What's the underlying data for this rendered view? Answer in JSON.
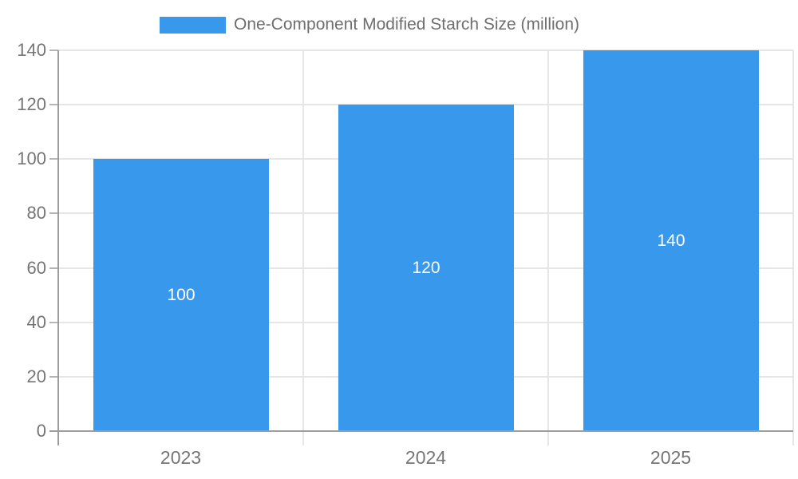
{
  "legend": {
    "label": "One-Component Modified Starch Size (million)",
    "swatch_color": "#3899ec"
  },
  "chart_data": {
    "type": "bar",
    "title": "",
    "categories": [
      "2023",
      "2024",
      "2025"
    ],
    "series": [
      {
        "name": "One-Component Modified Starch Size (million)",
        "values": [
          100,
          120,
          140
        ]
      }
    ],
    "bar_value_labels": [
      "100",
      "120",
      "140"
    ],
    "xlabel": "",
    "ylabel": "",
    "ylim": [
      0,
      140
    ],
    "yticks": [
      0,
      20,
      40,
      60,
      80,
      100,
      120,
      140
    ],
    "ytick_labels": [
      "0",
      "20",
      "40",
      "60",
      "80",
      "100",
      "120",
      "140"
    ],
    "grid": true,
    "legend_position": "top-center",
    "colors": {
      "bar": "#3899ec",
      "axis": "#9e9e9e",
      "gridline": "#e6e6e6",
      "tick": "#b5b5b5",
      "axis_label": "#757575",
      "bar_label": "#ffffff",
      "background": "#ffffff"
    }
  }
}
